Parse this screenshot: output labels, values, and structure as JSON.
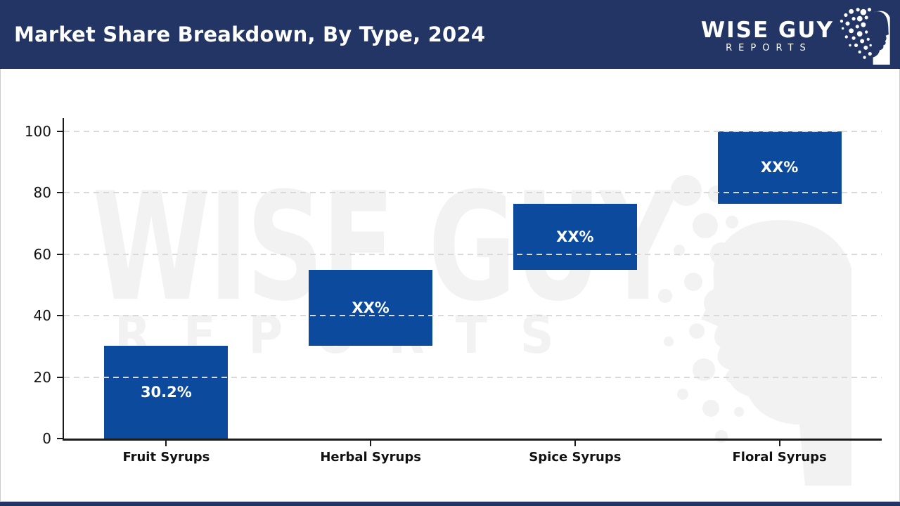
{
  "header": {
    "title": "Market Share Breakdown, By Type, 2024",
    "logo": {
      "line1": "WISE GUY",
      "line2": "REPORTS"
    }
  },
  "watermark": {
    "line1": "WISE GUY",
    "line2": "REPORTS"
  },
  "chart_data": {
    "type": "bar",
    "subtype": "floating-waterfall",
    "title": "Market Share Breakdown, By Type, 2024",
    "categories": [
      "Fruit Syrups",
      "Herbal Syrups",
      "Spice Syrups",
      "Floral Syrups"
    ],
    "segments": [
      {
        "category": "Fruit Syrups",
        "start": 0,
        "end": 30.2,
        "label": "30.2%"
      },
      {
        "category": "Herbal Syrups",
        "start": 30.2,
        "end": 54.8,
        "label": "XX%"
      },
      {
        "category": "Spice Syrups",
        "start": 54.8,
        "end": 76.4,
        "label": "XX%"
      },
      {
        "category": "Floral Syrups",
        "start": 76.4,
        "end": 100,
        "label": "XX%"
      }
    ],
    "yticks": [
      0,
      20,
      40,
      60,
      80,
      100
    ],
    "ylim": [
      0,
      104.3
    ],
    "grid": true,
    "gridline_style": "dashed",
    "legend": false,
    "bar_color": "#0c4a9e",
    "bar_label_color": "#ffffff",
    "axis_color": "#1a1a1a",
    "tick_label_color": "#111111",
    "watermark_color": "#f2f2f3",
    "header_color": "#223564"
  }
}
